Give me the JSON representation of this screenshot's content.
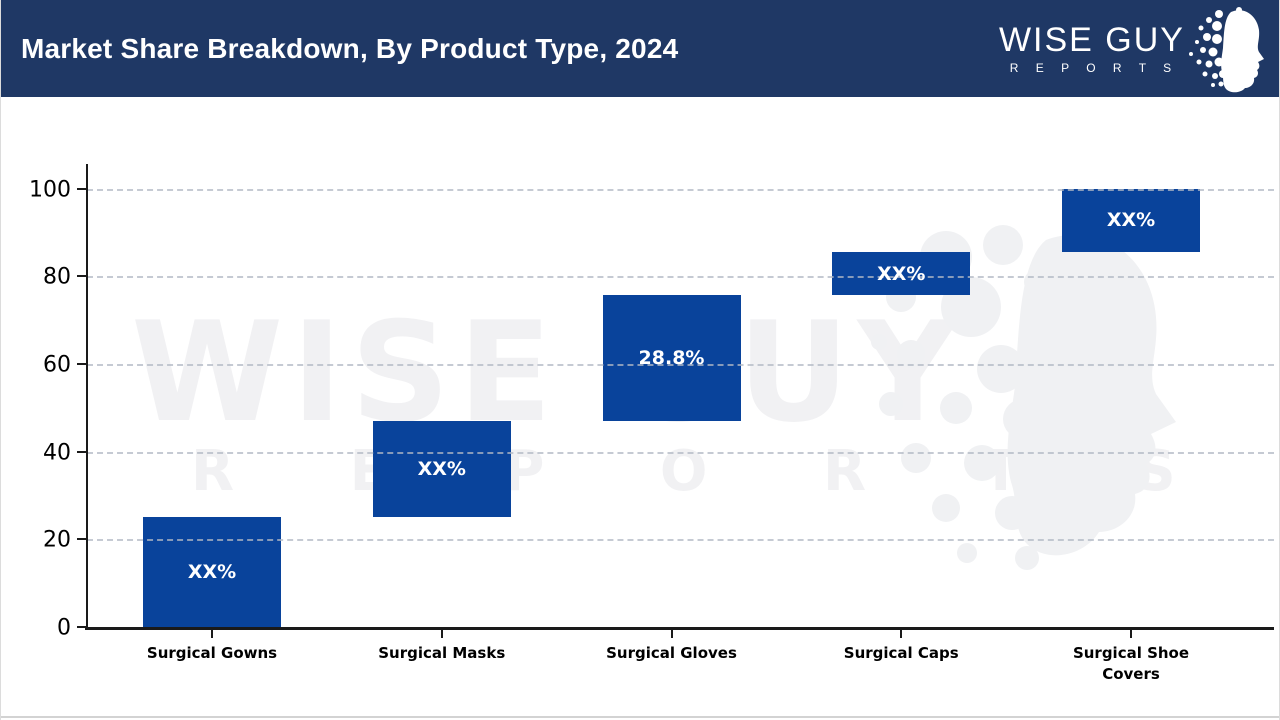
{
  "header": {
    "title": "Market Share Breakdown, By Product Type, 2024",
    "logo": {
      "brand": "WISE GUY",
      "sub": "R E P O R T S"
    }
  },
  "watermark": {
    "line1": "WISE GUY",
    "line2": "R E P O R T S"
  },
  "chart_data": {
    "type": "bar",
    "subtype": "waterfall-floating-bars",
    "title": "Market Share Breakdown, By Product Type, 2024",
    "xlabel": "",
    "ylabel": "",
    "categories": [
      "Surgical Gowns",
      "Surgical Masks",
      "Surgical Gloves",
      "Surgical Caps",
      "Surgical Shoe Covers"
    ],
    "bars": [
      {
        "category": "Surgical Gowns",
        "start": 0,
        "end": 25,
        "label": "XX%"
      },
      {
        "category": "Surgical Masks",
        "start": 25,
        "end": 46.9,
        "label": "XX%"
      },
      {
        "category": "Surgical Gloves",
        "start": 46.9,
        "end": 75.7,
        "label": "28.8%"
      },
      {
        "category": "Surgical Caps",
        "start": 75.7,
        "end": 85.5,
        "label": "XX%"
      },
      {
        "category": "Surgical Shoe Covers",
        "start": 85.5,
        "end": 100,
        "label": "XX%"
      }
    ],
    "y_ticks": [
      0,
      20,
      40,
      60,
      80,
      100
    ],
    "ylim": [
      0,
      105.5
    ],
    "grid": {
      "axis": "y",
      "style": "dashed"
    },
    "legend": null
  },
  "colors": {
    "header_bg": "#1f3865",
    "bar_blue": "#09439b",
    "bar_label": "#ffffff",
    "axis": "#1a1a1a",
    "grid": "#c6cad3",
    "watermark": "#f1f1f3"
  }
}
